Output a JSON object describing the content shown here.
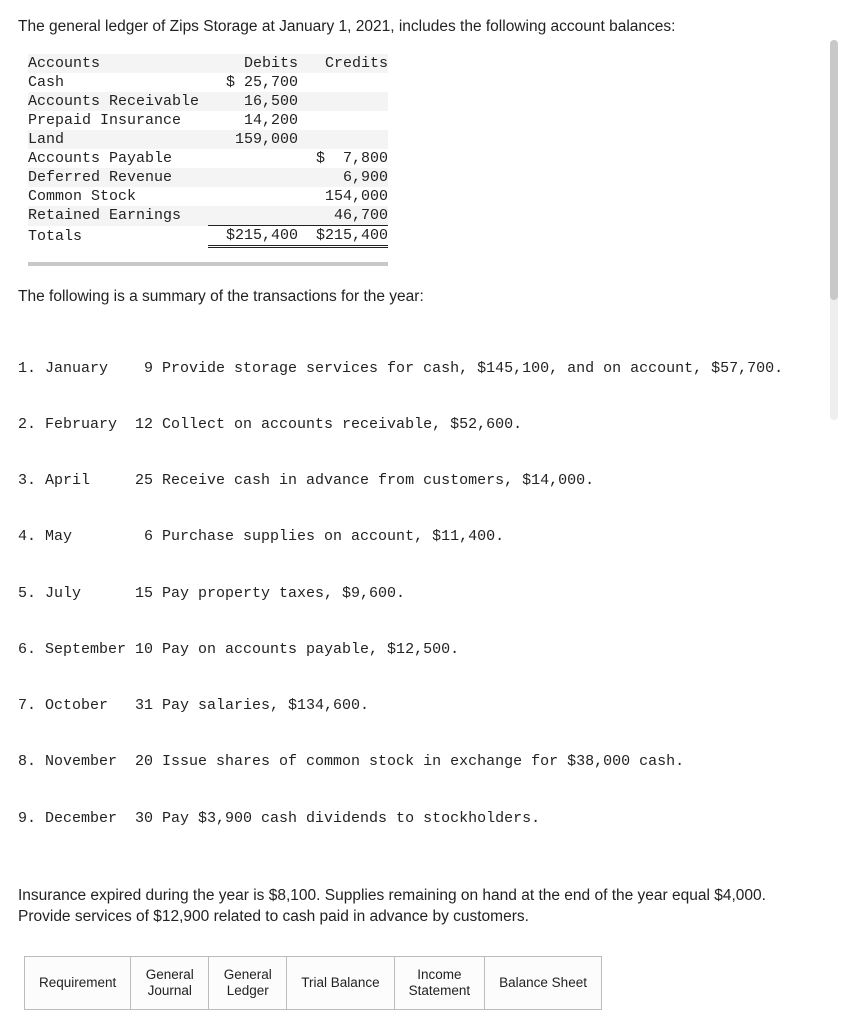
{
  "intro": "The general ledger of Zips Storage at January 1, 2021, includes the following account balances:",
  "ledger": {
    "headers": {
      "acct": "Accounts",
      "deb": "Debits",
      "cred": "Credits"
    },
    "rows": [
      {
        "acct": "Cash",
        "deb": "$ 25,700",
        "cred": ""
      },
      {
        "acct": "Accounts Receivable",
        "deb": "16,500",
        "cred": ""
      },
      {
        "acct": "Prepaid Insurance",
        "deb": "14,200",
        "cred": ""
      },
      {
        "acct": "Land",
        "deb": "159,000",
        "cred": ""
      },
      {
        "acct": "Accounts Payable",
        "deb": "",
        "cred": "$  7,800"
      },
      {
        "acct": "Deferred Revenue",
        "deb": "",
        "cred": "6,900"
      },
      {
        "acct": "Common Stock",
        "deb": "",
        "cred": "154,000"
      },
      {
        "acct": "Retained Earnings",
        "deb": "",
        "cred": "46,700"
      }
    ],
    "totals": {
      "acct": "Totals",
      "deb": "$215,400",
      "cred": "$215,400"
    }
  },
  "summary_text": "The following is a summary of the transactions for the year:",
  "transactions": [
    "1. January    9 Provide storage services for cash, $145,100, and on account, $57,700.",
    "2. February  12 Collect on accounts receivable, $52,600.",
    "3. April     25 Receive cash in advance from customers, $14,000.",
    "4. May        6 Purchase supplies on account, $11,400.",
    "5. July      15 Pay property taxes, $9,600.",
    "6. September 10 Pay on accounts payable, $12,500.",
    "7. October   31 Pay salaries, $134,600.",
    "8. November  20 Issue shares of common stock in exchange for $38,000 cash.",
    "9. December  30 Pay $3,900 cash dividends to stockholders."
  ],
  "adjust_text": "Insurance expired during the year is $8,100. Supplies remaining on hand at the end of the year equal $4,000. Provide services of $12,900 related to cash paid in advance by customers.",
  "tabs": {
    "requirement": "Requirement",
    "gj1": "General",
    "gj2": "Journal",
    "gl1": "General",
    "gl2": "Ledger",
    "tb": "Trial Balance",
    "is1": "Income",
    "is2": "Statement",
    "bs": "Balance Sheet"
  },
  "colors": {
    "text": "#222222",
    "stripe": "#f4f4f5",
    "divider": "#c8c8c8",
    "tab_border": "#bcbcbc",
    "scrollbar_thumb": "#c8c8c8",
    "background": "#ffffff"
  }
}
